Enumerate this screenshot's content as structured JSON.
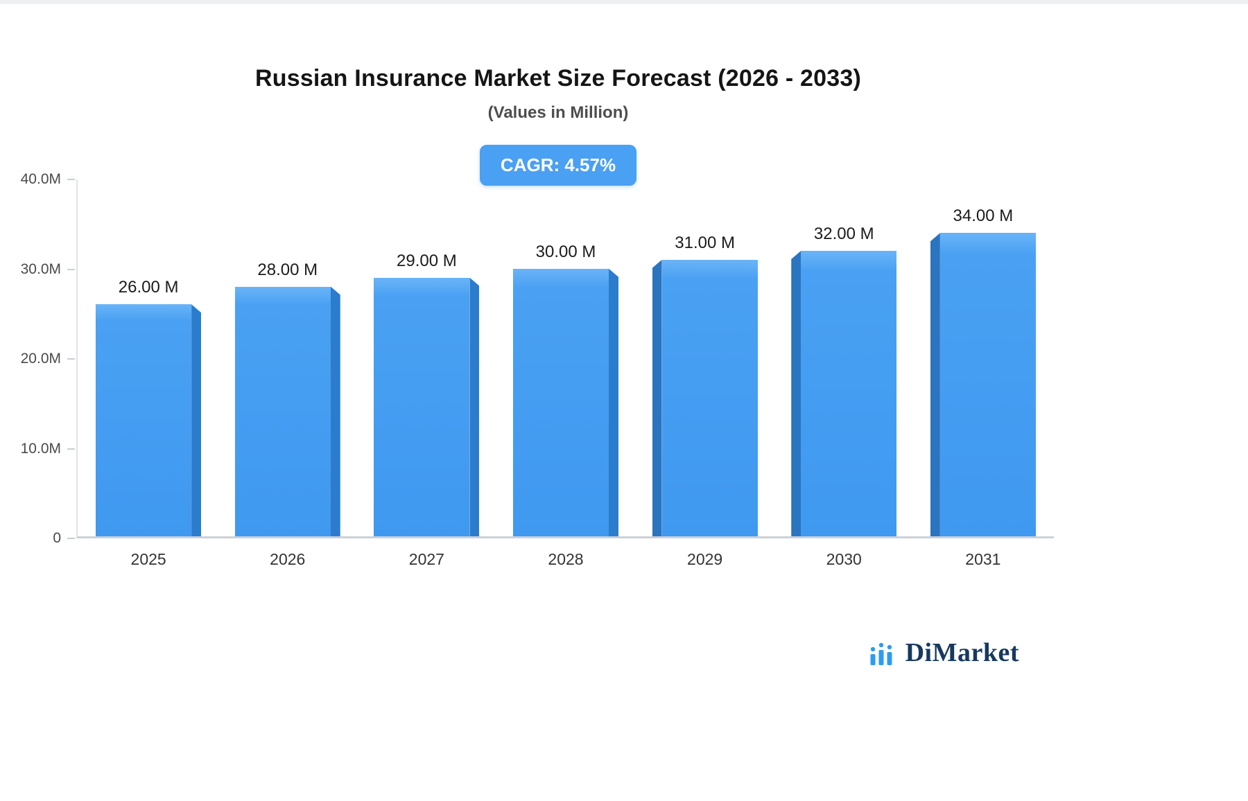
{
  "header": {
    "title": "Russian Insurance Market Size Forecast (2026 - 2033)",
    "subtitle": "(Values in Million)",
    "cagr_label": "CAGR: 4.57%"
  },
  "logo": {
    "text": "DiMarket"
  },
  "colors": {
    "bar_main": "#3f99f0",
    "bar_side_right": "#2b7ccd",
    "bar_side_left": "#2a74c0",
    "badge": "#4aa0f2",
    "logo_navy": "#17395f",
    "logo_blue": "#2d9cf0"
  },
  "chart_data": {
    "type": "bar",
    "title": "Russian Insurance Market Size Forecast (2026 - 2033)",
    "subtitle": "(Values in Million)",
    "categories": [
      "2025",
      "2026",
      "2027",
      "2028",
      "2029",
      "2030",
      "2031"
    ],
    "values": [
      26,
      28,
      29,
      30,
      31,
      32,
      34
    ],
    "value_labels": [
      "26.00 M",
      "28.00 M",
      "29.00 M",
      "30.00 M",
      "31.00 M",
      "32.00 M",
      "34.00 M"
    ],
    "unit": "M",
    "xlabel": "",
    "ylabel": "",
    "ylim": [
      0,
      40
    ],
    "yticks": [
      {
        "value": 0,
        "label": "0"
      },
      {
        "value": 10,
        "label": "10.0M"
      },
      {
        "value": 20,
        "label": "20.0M"
      },
      {
        "value": 30,
        "label": "30.0M"
      },
      {
        "value": 40,
        "label": "40.0M"
      }
    ],
    "grid": false,
    "legend": false,
    "annotation": "CAGR: 4.57%"
  }
}
